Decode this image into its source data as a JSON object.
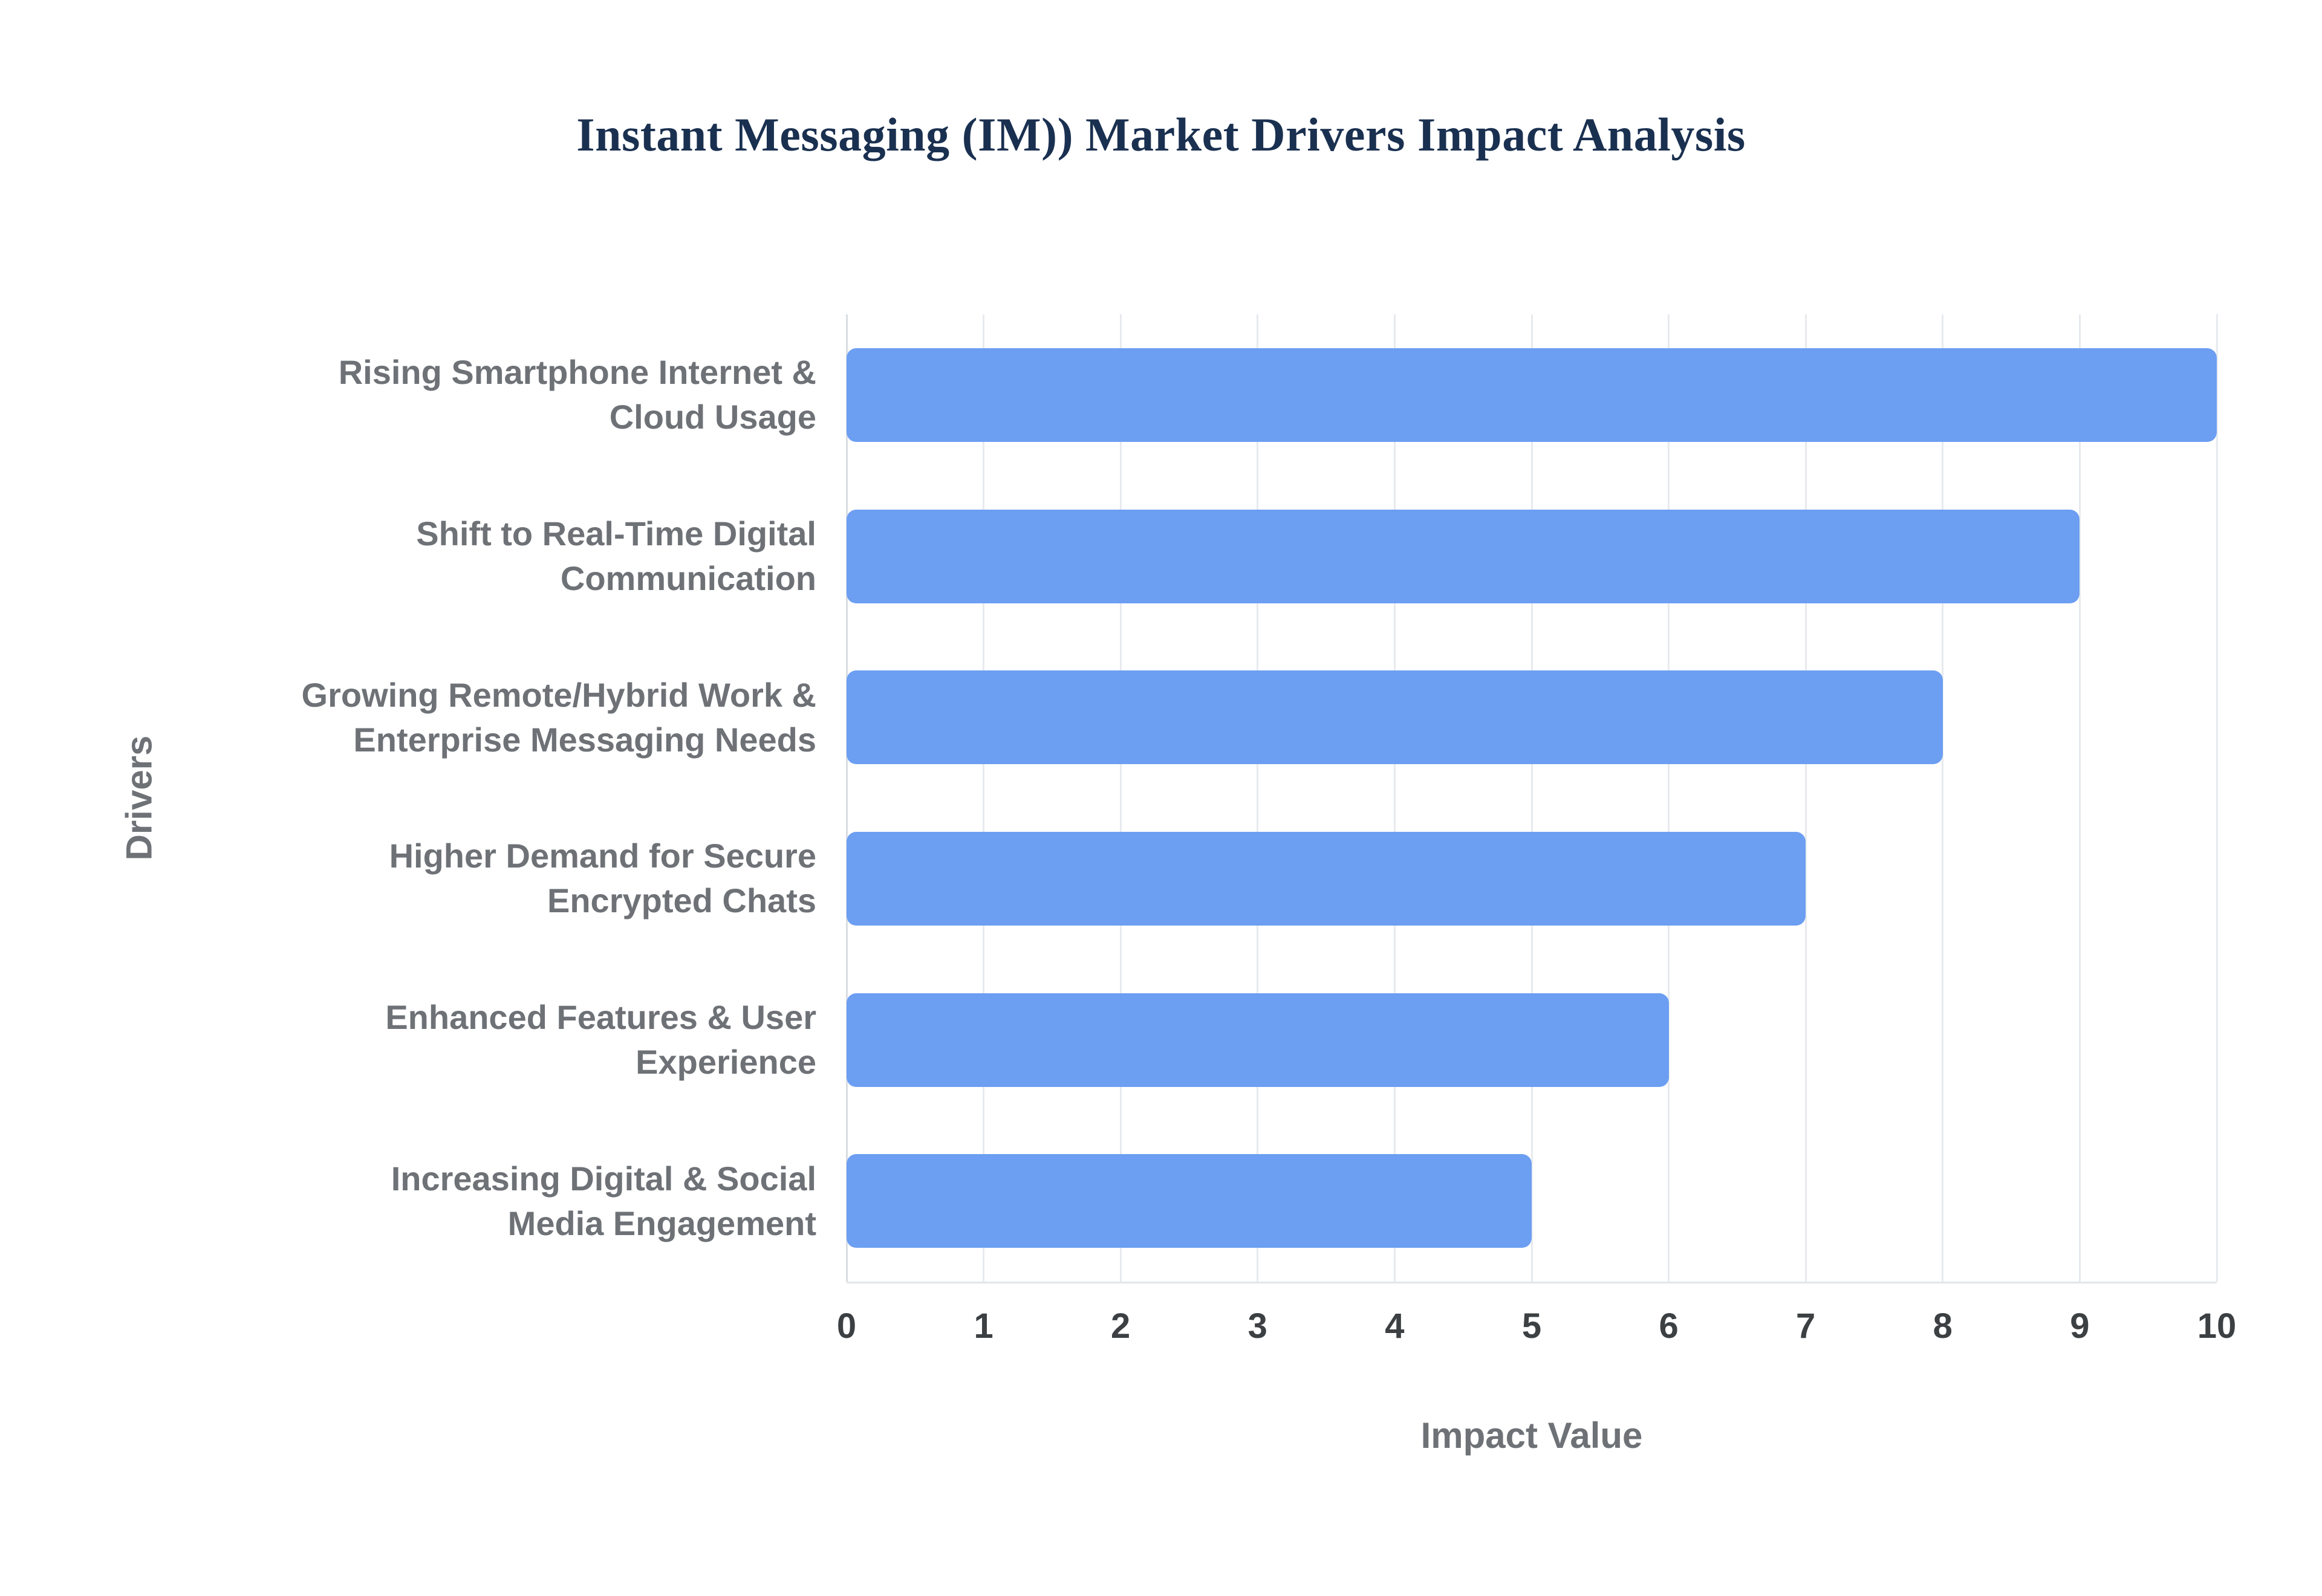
{
  "title": "Instant Messaging (IM)) Market Drivers Impact Analysis",
  "chart_data": {
    "type": "bar",
    "orientation": "horizontal",
    "title": "Instant Messaging (IM)) Market Drivers Impact Analysis",
    "xlabel": "Impact Value",
    "ylabel": "Drivers",
    "xlim": [
      0,
      10
    ],
    "xticks": [
      0,
      1,
      2,
      3,
      4,
      5,
      6,
      7,
      8,
      9,
      10
    ],
    "grid": "vertical",
    "legend": false,
    "bar_color": "#6c9ef2",
    "gridline_color": "#e7eaee",
    "title_color": "#1a3050",
    "label_color": "#6e7277",
    "categories": [
      "Rising Smartphone Internet &\nCloud Usage",
      "Shift to Real-Time Digital\nCommunication",
      "Growing Remote/Hybrid Work &\nEnterprise Messaging Needs",
      "Higher Demand for Secure\nEncrypted Chats",
      "Enhanced Features & User\nExperience",
      "Increasing Digital & Social\nMedia Engagement"
    ],
    "values": [
      10,
      9,
      8,
      7,
      6,
      5
    ]
  }
}
